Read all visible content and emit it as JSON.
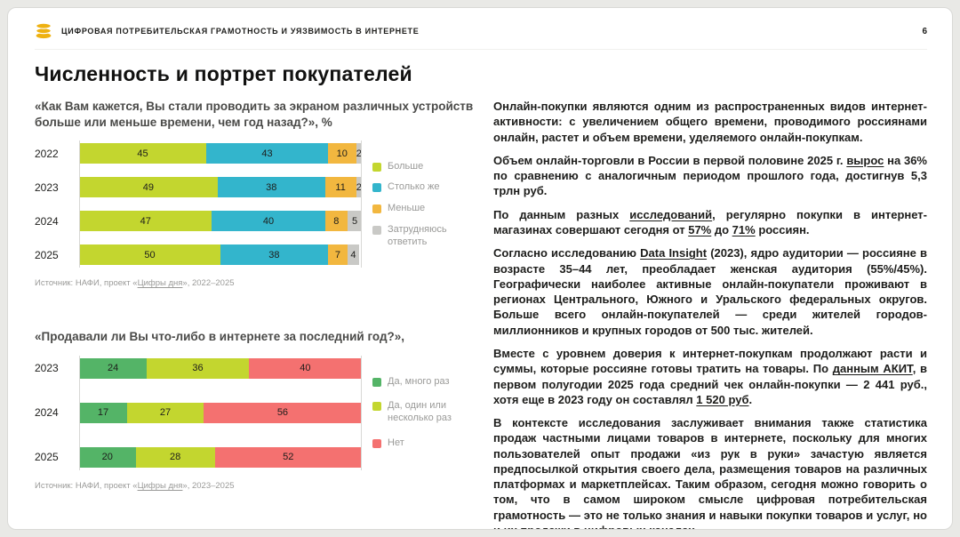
{
  "header": {
    "title": "ЦИФРОВАЯ ПОТРЕБИТЕЛЬСКАЯ ГРАМОТНОСТЬ И УЯЗВИМОСТЬ В ИНТЕРНЕТЕ",
    "page_number": "6",
    "logo_icon": "coin-stack-icon"
  },
  "main": {
    "title": "Численность и портрет покупателей"
  },
  "colors": {
    "page_background": "#e9e9e6",
    "card_background": "#ffffff",
    "text": "#1d1d1b",
    "muted_text": "#9a9a98",
    "axis_line": "#d8d8d5",
    "logo_yellow": "#eeb111"
  },
  "chart_data": [
    {
      "type": "bar",
      "stacked": true,
      "orientation": "horizontal",
      "title": "«Как Вам кажется, Вы стали проводить за экраном различных устройств больше или меньше времени, чем год назад?», %",
      "categories": [
        "2022",
        "2023",
        "2024",
        "2025"
      ],
      "series": [
        {
          "name": "Больше",
          "color": "#c3d62f",
          "values": [
            45,
            49,
            47,
            50
          ]
        },
        {
          "name": "Столько же",
          "color": "#33b5cc",
          "values": [
            43,
            38,
            40,
            38
          ]
        },
        {
          "name": "Меньше",
          "color": "#f2b73f",
          "values": [
            10,
            11,
            8,
            7
          ]
        },
        {
          "name": "Затрудняюсь ответить",
          "color": "#c9c9c6",
          "values": [
            2,
            2,
            5,
            4
          ]
        }
      ],
      "xlim": [
        0,
        100
      ],
      "grid": false,
      "legend_position": "right",
      "value_labels": "inside",
      "source_segments": [
        {
          "t": "Источник: НАФИ, проект «"
        },
        {
          "t": "Цифры дня",
          "link": true
        },
        {
          "t": "», 2022–2025"
        }
      ]
    },
    {
      "type": "bar",
      "stacked": true,
      "orientation": "horizontal",
      "title": "«Продавали ли Вы что-либо в интернете за последний год?»,",
      "categories": [
        "2023",
        "2024",
        "2025"
      ],
      "series": [
        {
          "name": "Да, много раз",
          "color": "#54b467",
          "values": [
            24,
            17,
            20
          ]
        },
        {
          "name": "Да, один или несколько раз",
          "color": "#c3d62f",
          "values": [
            36,
            27,
            28
          ]
        },
        {
          "name": "Нет",
          "color": "#f47170",
          "values": [
            40,
            56,
            52
          ]
        }
      ],
      "xlim": [
        0,
        100
      ],
      "grid": false,
      "legend_position": "right",
      "value_labels": "inside",
      "source_segments": [
        {
          "t": "Источник: НАФИ, проект «"
        },
        {
          "t": "Цифры дня",
          "link": true
        },
        {
          "t": "», 2023–2025"
        }
      ]
    }
  ],
  "article": {
    "paragraphs": [
      {
        "segments": [
          {
            "t": "Онлайн-покупки являются одним из распространенных видов интернет-активности: с увеличением общего времени, проводимого россиянами онлайн, растет и объем времени, уделяемого онлайн-покупкам."
          }
        ]
      },
      {
        "segments": [
          {
            "t": "Объем онлайн-торговли в России в первой половине 2025 г. "
          },
          {
            "t": "вырос",
            "link": true
          },
          {
            "t": " на 36% по сравнению с аналогичным периодом прошлого года, достигнув 5,3 трлн руб."
          }
        ]
      },
      {
        "segments": [
          {
            "t": "По данным разных "
          },
          {
            "t": "исследований",
            "link": true
          },
          {
            "t": ", регулярно покупки в интернет-магазинах совершают сегодня от "
          },
          {
            "t": "57%",
            "link": true
          },
          {
            "t": " до "
          },
          {
            "t": "71%",
            "link": true
          },
          {
            "t": " россиян."
          }
        ]
      },
      {
        "segments": [
          {
            "t": "Согласно исследованию "
          },
          {
            "t": "Data Insight",
            "link": true
          },
          {
            "t": " (2023), ядро аудитории — россияне в возрасте 35–44 лет, преобладает женская аудитория (55%/45%). Географически наиболее активные онлайн-покупатели проживают в регионах Центрального, Южного и Уральского федеральных округов. Больше всего онлайн-покупателей — среди жителей городов-миллионников и крупных городов от 500 тыс. жителей."
          }
        ]
      },
      {
        "segments": [
          {
            "t": "Вместе с уровнем доверия к интернет-покупкам продолжают расти и суммы, которые россияне готовы тратить на товары. По "
          },
          {
            "t": "данным АКИТ",
            "link": true
          },
          {
            "t": ", в первом полугодии 2025 года средний чек онлайн-покупки — 2 441 руб., хотя еще в 2023 году он составлял "
          },
          {
            "t": "1 520 руб",
            "link": true
          },
          {
            "t": "."
          }
        ]
      },
      {
        "segments": [
          {
            "t": "В контексте исследования заслуживает внимания также статистика продаж частными лицами товаров в интернете, поскольку для многих пользователей опыт продажи «из рук в руки» зачастую является предпосылкой открытия своего дела, размещения товаров на различных платформах и маркетплейсах. Таким образом, сегодня можно говорить о том, что в самом широком смысле цифровая потребительская грамотность — это не только знания и навыки покупки товаров и услуг, но и их продажи в цифровых каналах."
          }
        ]
      }
    ]
  }
}
